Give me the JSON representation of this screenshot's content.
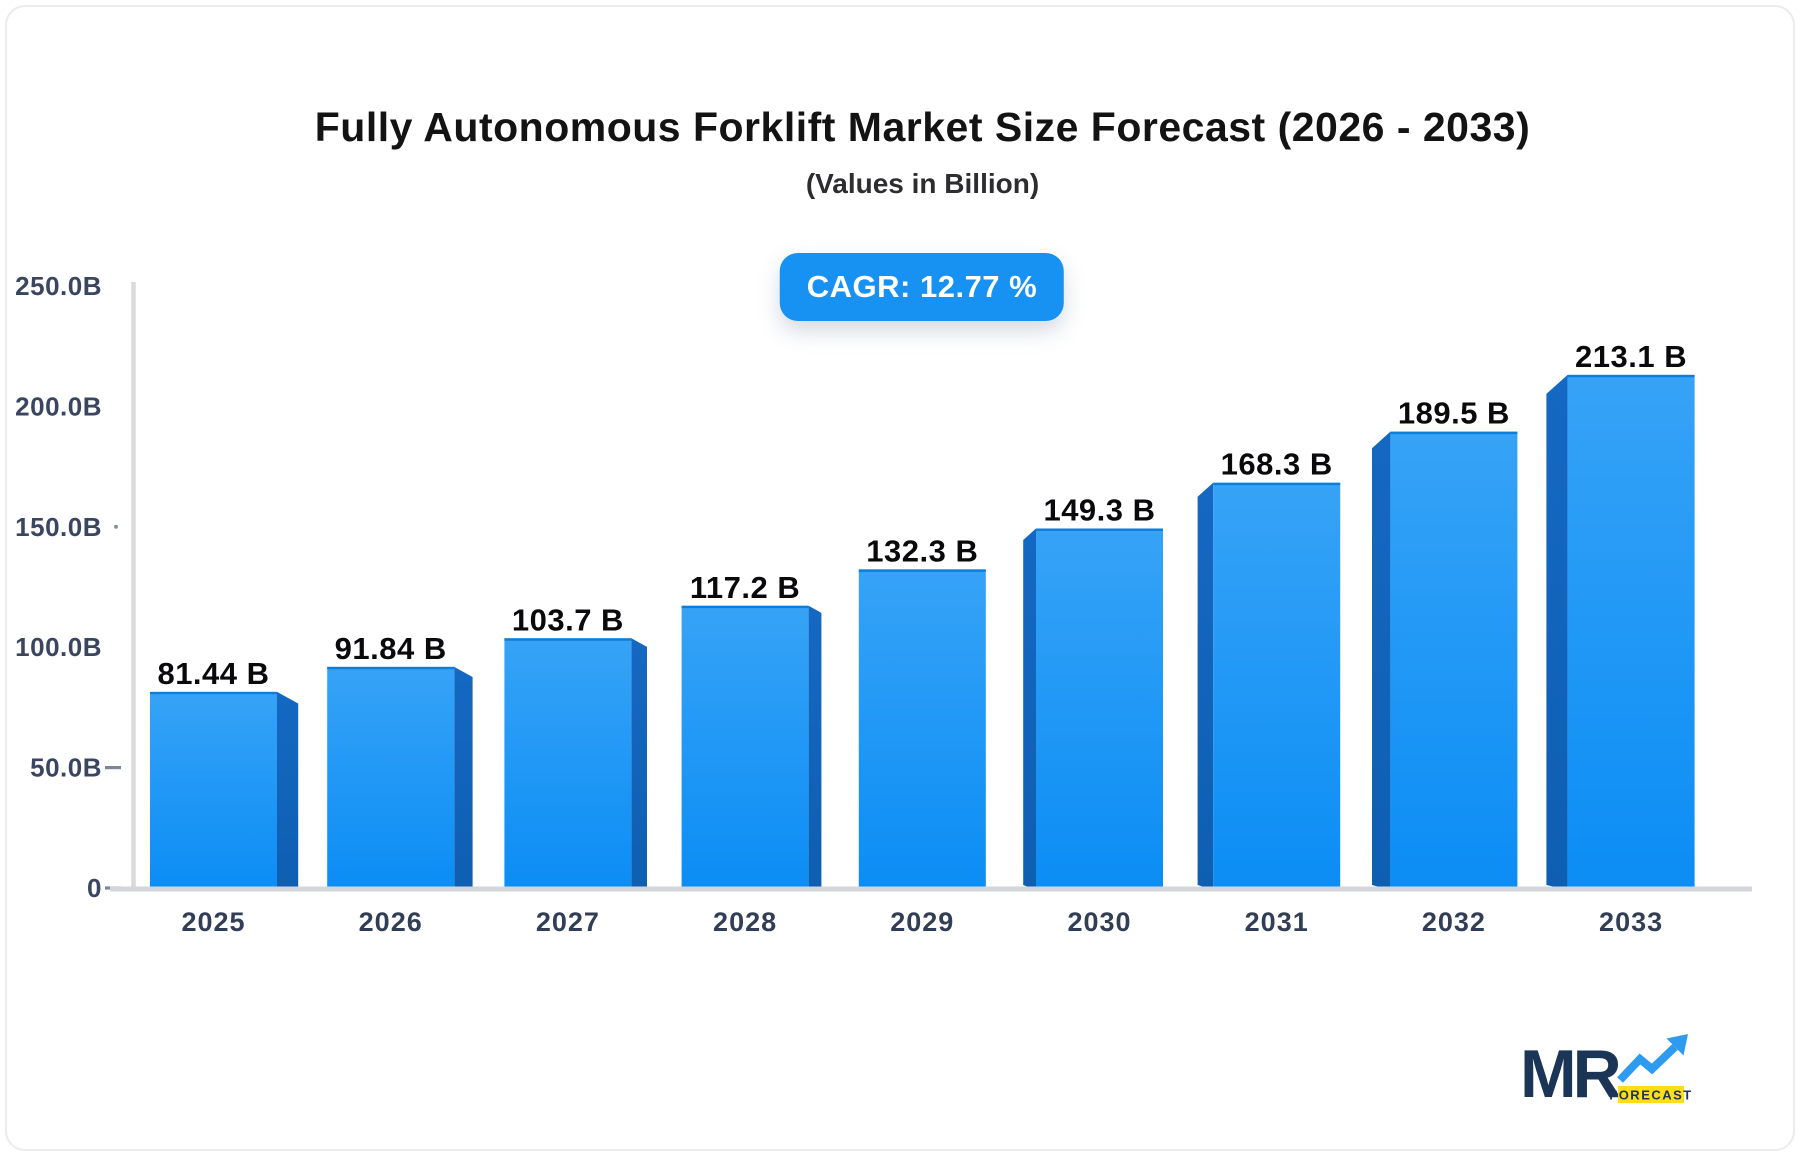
{
  "header": {
    "title": "Fully Autonomous Forklift Market Size Forecast (2026 - 2033)",
    "subtitle": "(Values in Billion)",
    "cagr_label": "CAGR: 12.77 %"
  },
  "chart_data": {
    "type": "bar",
    "title": "Fully Autonomous Forklift Market Size Forecast (2026 - 2033)",
    "subtitle": "(Values in Billion)",
    "annotation": "CAGR: 12.77 %",
    "categories": [
      "2025",
      "2026",
      "2027",
      "2028",
      "2029",
      "2030",
      "2031",
      "2032",
      "2033"
    ],
    "values": [
      81.44,
      91.84,
      103.7,
      117.2,
      132.3,
      149.3,
      168.3,
      189.5,
      213.1
    ],
    "value_labels": [
      "81.44 B",
      "91.84 B",
      "103.7 B",
      "117.2 B",
      "132.3 B",
      "149.3 B",
      "168.3 B",
      "189.5 B",
      "213.1 B"
    ],
    "xlabel": "",
    "ylabel": "",
    "ylim": [
      0,
      250
    ],
    "ytick_values": [
      250,
      200,
      150,
      100,
      50,
      0
    ],
    "ytick_labels": [
      "250.0B",
      "200.0B",
      "150.0B",
      "100.0B",
      "50.0B",
      "0"
    ],
    "grid": false,
    "legend": "none",
    "bar_style": {
      "face_top": "#36a3f6",
      "face_bottom": "#0b8df5",
      "side_top": "#1568c2",
      "side_bottom": "#0e5fb2",
      "top_edge": "#0d7edb"
    }
  },
  "colors": {
    "accent_blue": "#1791f2",
    "axis_line": "#d5d7dc",
    "axis_label": "#3a465f",
    "category_label": "#323e55",
    "value_label": "#0a0a0c",
    "logo_navy": "#1b3557",
    "logo_arrow_blue": "#2e9bf0",
    "logo_yellow": "#ffde17"
  },
  "logo": {
    "text": "MR",
    "badge": "FORECAST"
  }
}
